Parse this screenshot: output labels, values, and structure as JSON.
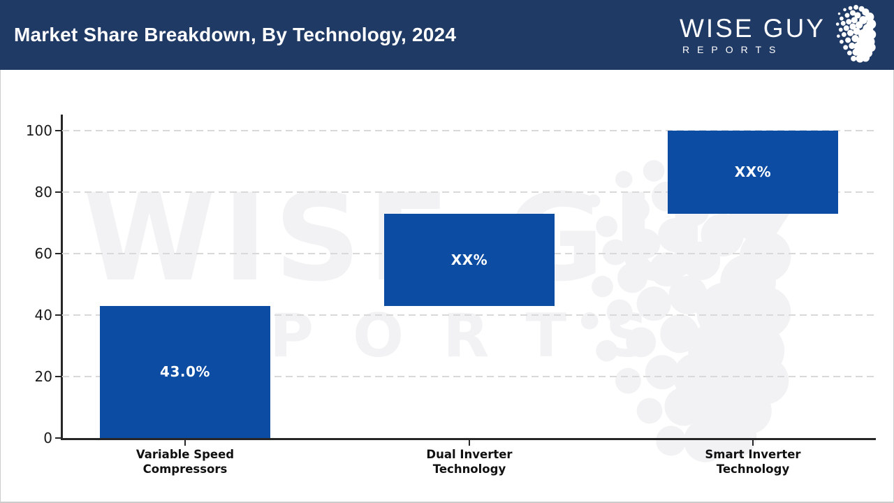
{
  "header": {
    "title": "Market Share Breakdown, By Technology, 2024",
    "logo": {
      "line1": "WISE GUY",
      "line2": "REPORTS"
    }
  },
  "watermark": {
    "line1": "WISE GUY",
    "line2": "REPORTS"
  },
  "colors": {
    "header_bg": "#203a66",
    "bar": "#0c4ca3",
    "grid": "#d9d9d9",
    "axis": "#262626",
    "tick_text": "#1a1a1a",
    "category_text": "#111111",
    "bar_label_text": "#ffffff",
    "watermark": "#f2f2f4",
    "card_border": "#cccccc"
  },
  "chart_data": {
    "type": "bar",
    "subtype": "waterfall",
    "title": "Market Share Breakdown, By Technology, 2024",
    "categories": [
      "Variable Speed\nCompressors",
      "Dual Inverter\nTechnology",
      "Smart Inverter\nTechnology"
    ],
    "series": [
      {
        "name": "Market Share %",
        "starts": [
          0,
          43,
          73
        ],
        "values": [
          43,
          30,
          27
        ],
        "ends": [
          43,
          73,
          100
        ]
      }
    ],
    "bar_labels": [
      "43.0%",
      "XX%",
      "XX%"
    ],
    "xlabel": "",
    "ylabel": "",
    "ylim": [
      0,
      105
    ],
    "yticks": [
      0,
      20,
      40,
      60,
      80,
      100
    ],
    "grid": "dashed-horizontal",
    "legend": "none"
  }
}
